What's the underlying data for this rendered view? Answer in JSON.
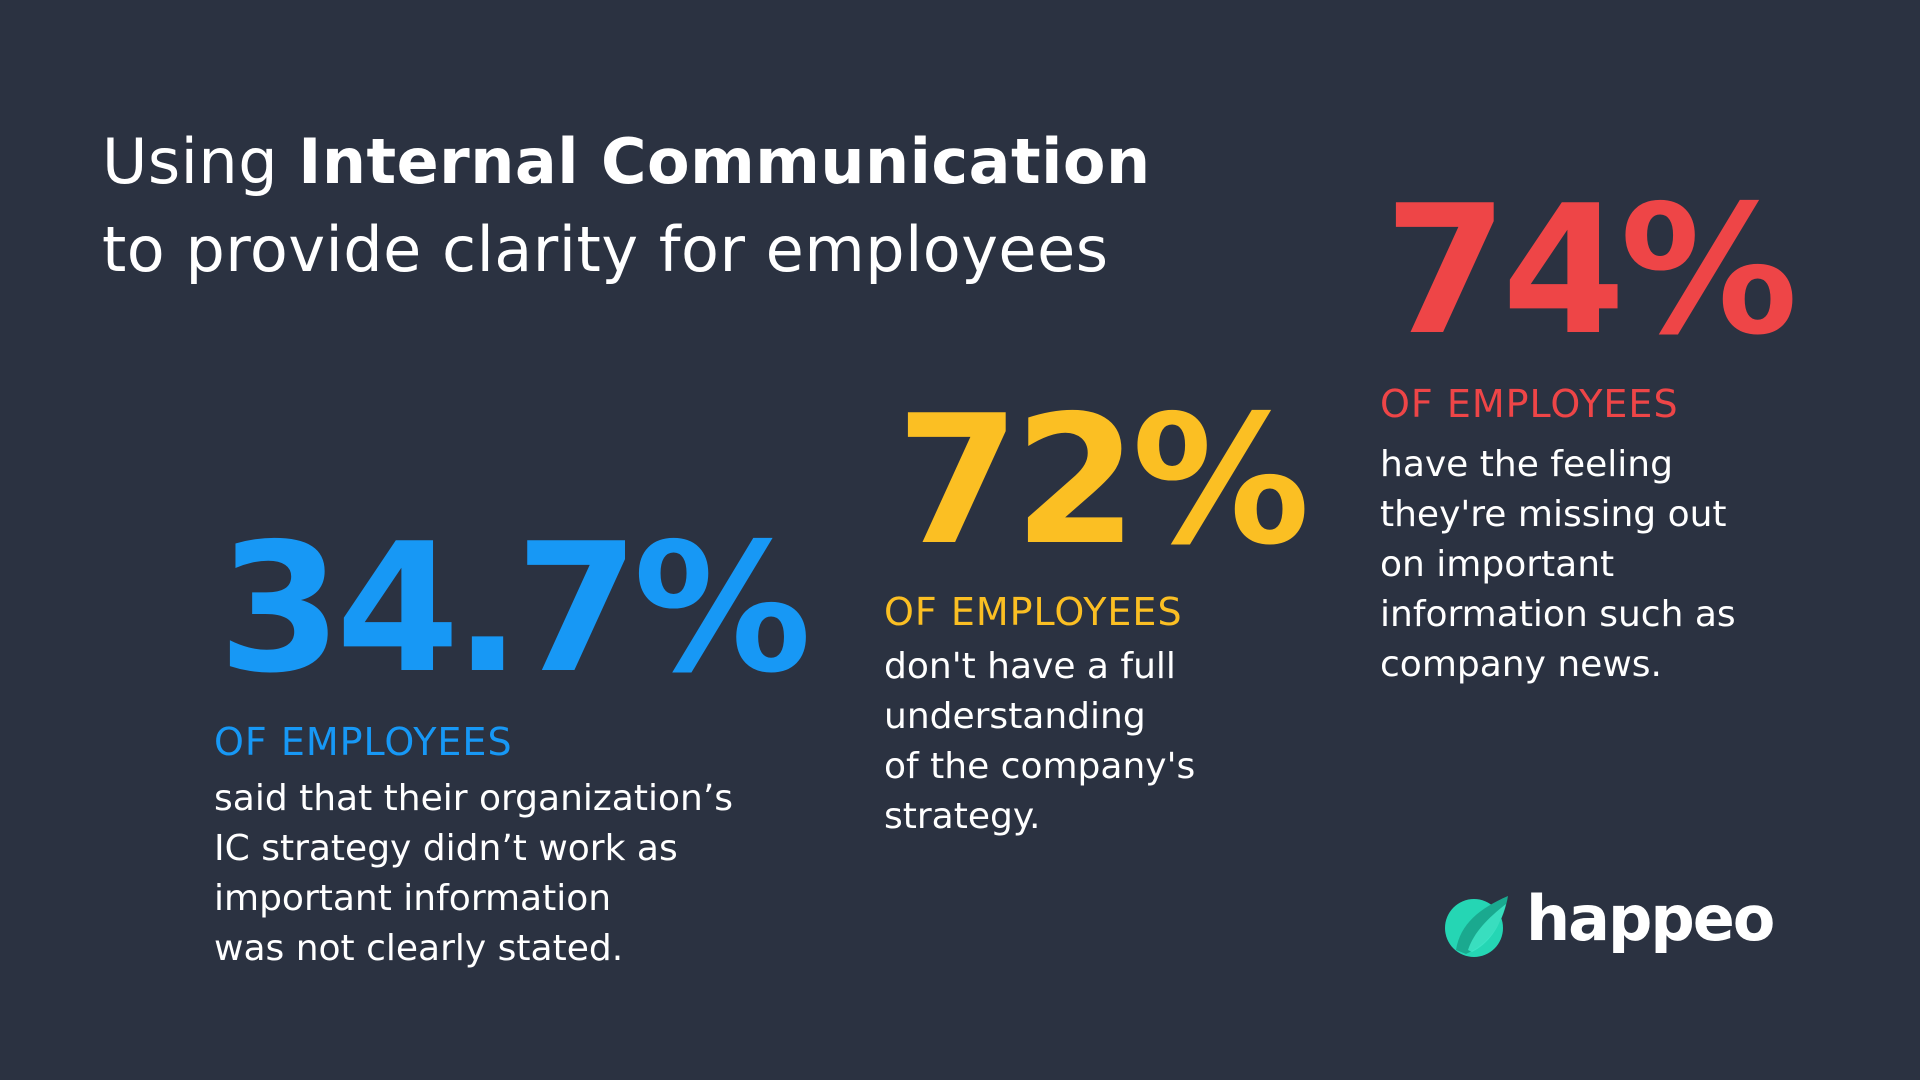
{
  "title": {
    "line1_prefix": "Using ",
    "line1_bold": "Internal Communication",
    "line2": "to provide clarity for employees"
  },
  "stats": [
    {
      "value": "34.7%",
      "label": "OF EMPLOYEES",
      "lines": [
        "said that their organization’s",
        "IC strategy didn’t work as",
        "important information",
        "was not clearly stated."
      ],
      "color": "#1798f5"
    },
    {
      "value": "72%",
      "label": "OF EMPLOYEES",
      "lines": [
        "don't have a full",
        "understanding",
        "of the company's",
        "strategy."
      ],
      "color": "#fbbf23"
    },
    {
      "value": "74%",
      "label": "OF EMPLOYEES",
      "lines": [
        "have the feeling",
        "they're missing out",
        "on important",
        "information such as",
        "company news."
      ],
      "color": "#ee4547"
    }
  ],
  "logo": {
    "wordmark": "happeo",
    "icon": "leaf-logo-icon",
    "icon_color": "#25d6b4"
  },
  "colors": {
    "background": "#2b3241",
    "text": "#ffffff"
  }
}
